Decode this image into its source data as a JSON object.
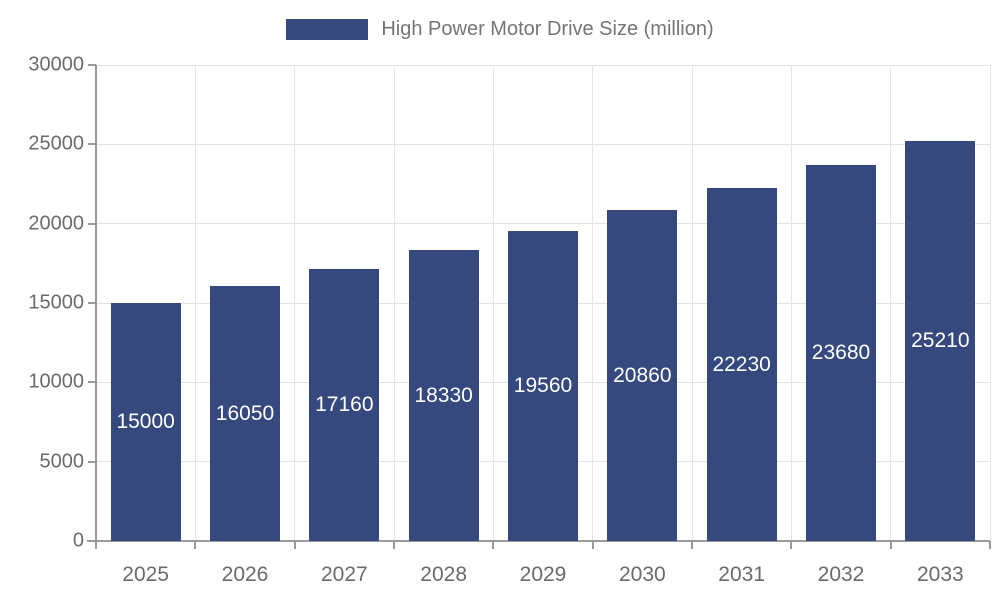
{
  "legend": {
    "label": "High Power Motor Drive Size (million)"
  },
  "chart_data": {
    "type": "bar",
    "title": "High Power Motor Drive Size (million)",
    "categories": [
      "2025",
      "2026",
      "2027",
      "2028",
      "2029",
      "2030",
      "2031",
      "2032",
      "2033"
    ],
    "series": [
      {
        "name": "High Power Motor Drive Size (million)",
        "values": [
          15000,
          16050,
          17160,
          18330,
          19560,
          20860,
          22230,
          23680,
          25210
        ]
      }
    ],
    "value_labels": [
      "15000",
      "16050",
      "17160",
      "18330",
      "19560",
      "20860",
      "22230",
      "23680",
      "25210"
    ],
    "xlabel": "",
    "ylabel": "",
    "ylim": [
      0,
      30000
    ],
    "yticks": [
      0,
      5000,
      10000,
      15000,
      20000,
      25000,
      30000
    ],
    "grid": "on",
    "legend_position": "top-center",
    "colors": {
      "bar": "#36497e",
      "bar_label_text": "#ffffff",
      "axis_line": "#9a9a9a",
      "gridline": "#e2e2e2",
      "tick_text": "#6b6b6b",
      "legend_text": "#757575",
      "background": "#ffffff"
    }
  }
}
